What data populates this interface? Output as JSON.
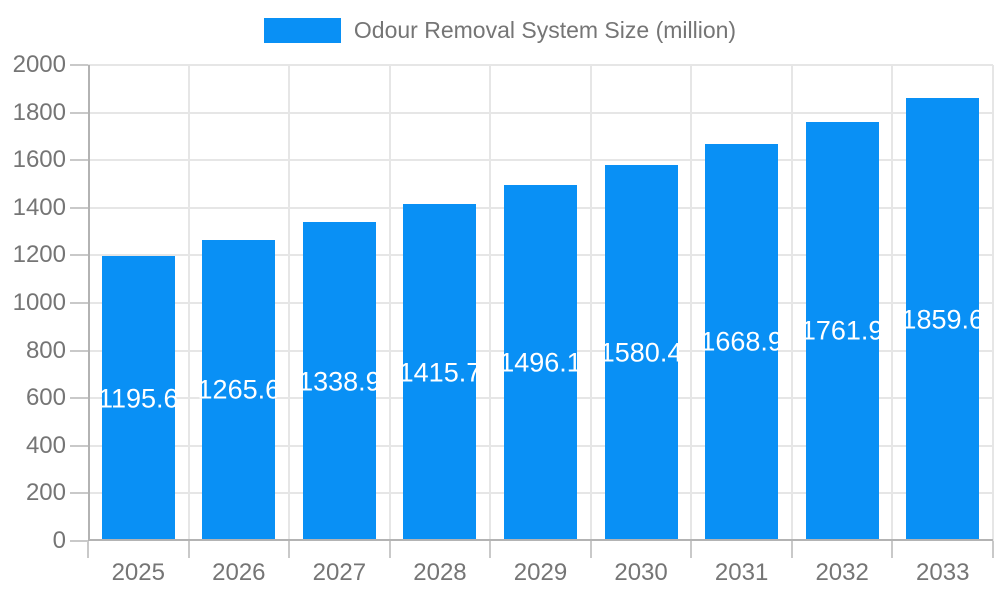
{
  "legend": {
    "label": "Odour Removal System Size (million)"
  },
  "colors": {
    "bar": "#0990f5",
    "grid": "#e6e6e6",
    "axis": "#b3b3b3",
    "tick": "#c9c9c9",
    "label_text": "#757575",
    "value_label": "#ffffff",
    "background": "#ffffff"
  },
  "chart_data": {
    "type": "bar",
    "title": "Odour Removal System Size (million)",
    "categories": [
      "2025",
      "2026",
      "2027",
      "2028",
      "2029",
      "2030",
      "2031",
      "2032",
      "2033"
    ],
    "values": [
      1195.6,
      1265.6,
      1338.9,
      1415.7,
      1496.1,
      1580.4,
      1668.9,
      1761.9,
      1859.6
    ],
    "xlabel": "",
    "ylabel": "",
    "ylim": [
      0,
      2000
    ],
    "ytick_step": 200,
    "ytick_labels": [
      "0",
      "200",
      "400",
      "600",
      "800",
      "1000",
      "1200",
      "1400",
      "1600",
      "1800",
      "2000"
    ],
    "grid": true,
    "legend_position": "top",
    "value_labels": "inside-center",
    "value_decimals": 1
  }
}
